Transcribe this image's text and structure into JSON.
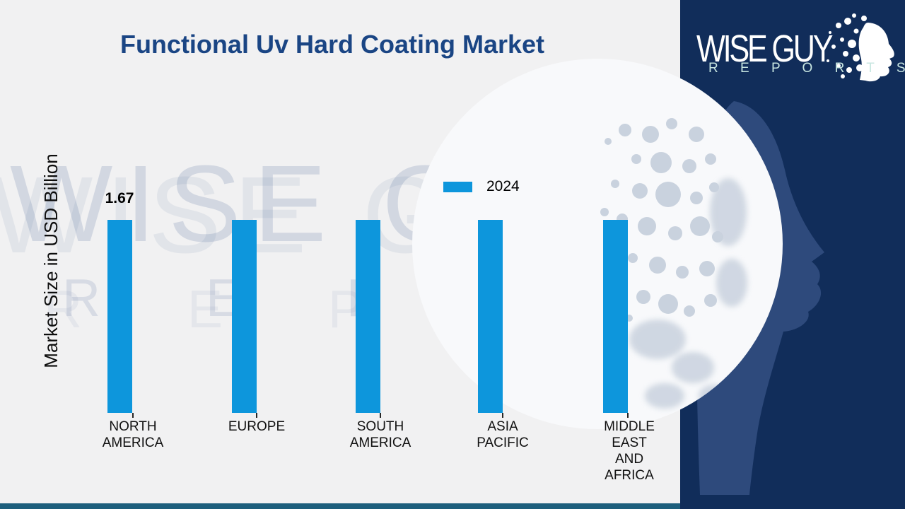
{
  "title": "Functional Uv Hard Coating Market",
  "brand": {
    "name_top": "WISE GUY",
    "name_bottom": "R E P O R T S"
  },
  "watermark": {
    "line1": "WISE GUY",
    "line2": "R E P O R T S"
  },
  "legend": {
    "items": [
      {
        "label": "2024",
        "color": "#0d96dc"
      }
    ]
  },
  "chart_data": {
    "type": "bar",
    "title": "Functional Uv Hard Coating Market",
    "categories": [
      "NORTH AMERICA",
      "EUROPE",
      "SOUTH AMERICA",
      "ASIA PACIFIC",
      "MIDDLE EAST AND AFRICA"
    ],
    "tick_labels": [
      "NORTH\nAMERICA",
      "EUROPE",
      "SOUTH\nAMERICA",
      "ASIA\nPACIFIC",
      "MIDDLE\nEAST\nAND\nAFRICA"
    ],
    "series": [
      {
        "name": "2024",
        "values": [
          1.67,
          1.67,
          1.67,
          1.67,
          1.67
        ]
      }
    ],
    "data_labels": [
      "1.67",
      "",
      "",
      "",
      ""
    ],
    "xlabel": "",
    "ylabel": "Market Size in USD Billion",
    "ylim": [
      0,
      2.5
    ],
    "grid": false,
    "legend_position": "upper right",
    "bar_color": "#0d96dc"
  },
  "colors": {
    "background": "#f1f1f2",
    "title": "#1a4584",
    "bar": "#0d96dc",
    "brand_panel": "#112d5a",
    "face_silhouette": "#2e4a7c",
    "watermark_circle": "#f8f9fb",
    "accent_strip": "#1d5e7c",
    "axis_text": "#0d0d0d"
  }
}
